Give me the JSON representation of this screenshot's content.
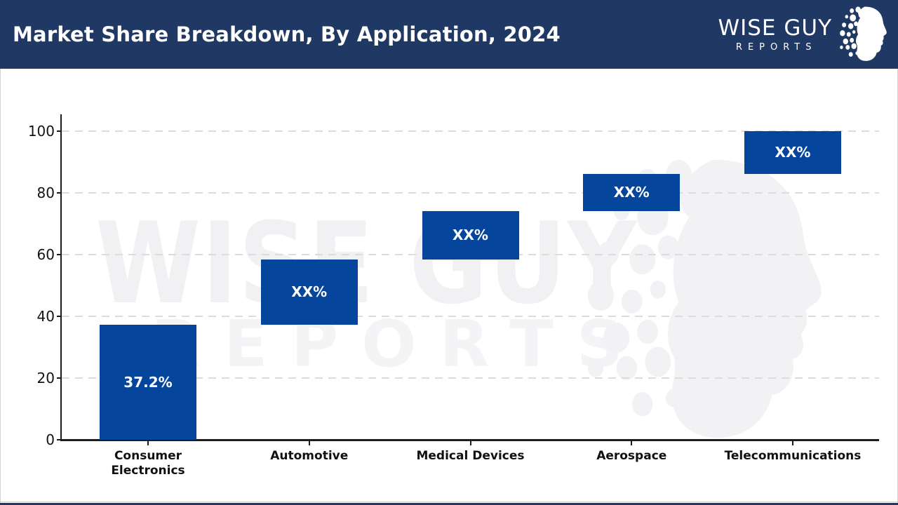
{
  "header": {
    "title": "Market Share Breakdown, By Application, 2024",
    "logo": {
      "name": "WISE GUY",
      "sub": "REPORTS"
    }
  },
  "watermark": {
    "line1": "WISE GUY",
    "line2": "REPORTS"
  },
  "colors": {
    "header_bg": "#203864",
    "bar": "#05459c",
    "grid": "#dcdcdc",
    "axis": "#1c1c1c",
    "watermark": "#f1f1f4",
    "bar_label": "#ffffff"
  },
  "chart_data": {
    "type": "bar",
    "subtype": "waterfall",
    "title": "Market Share Breakdown, By Application, 2024",
    "categories": [
      "Consumer\nElectronics",
      "Automotive",
      "Medical Devices",
      "Aerospace",
      "Telecommunications"
    ],
    "segments": [
      {
        "category": "Consumer Electronics",
        "start": 0,
        "end": 37.2,
        "label": "37.2%"
      },
      {
        "category": "Automotive",
        "start": 37.2,
        "end": 58.5,
        "label": "XX%"
      },
      {
        "category": "Medical Devices",
        "start": 58.5,
        "end": 74.2,
        "label": "XX%"
      },
      {
        "category": "Aerospace",
        "start": 74.2,
        "end": 86.2,
        "label": "XX%"
      },
      {
        "category": "Telecommunications",
        "start": 86.2,
        "end": 100,
        "label": "XX%"
      }
    ],
    "xlabel": "",
    "ylabel": "",
    "ylim": [
      0,
      100
    ],
    "yticks": [
      0,
      20,
      40,
      60,
      80,
      100
    ],
    "grid": "horizontal-dashed",
    "legend": "none"
  }
}
